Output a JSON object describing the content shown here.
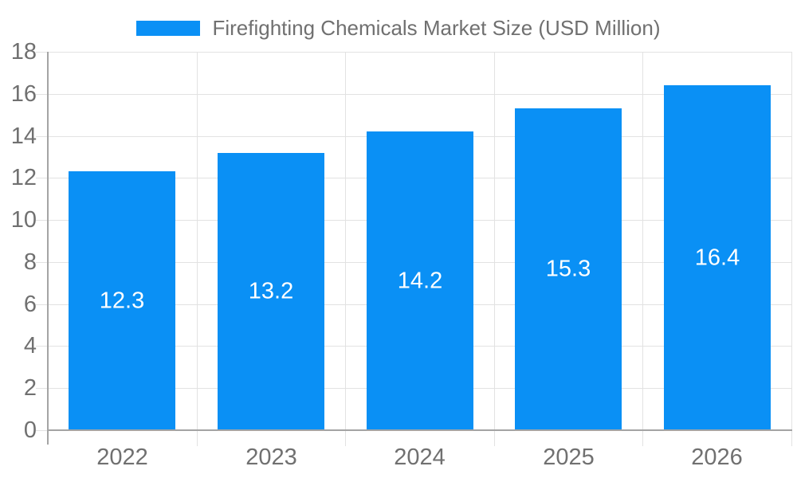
{
  "chart_data": {
    "type": "bar",
    "title": "Firefighting Chemicals Market Size (USD Million)",
    "categories": [
      "2022",
      "2023",
      "2024",
      "2025",
      "2026"
    ],
    "values": [
      12.3,
      13.2,
      14.2,
      15.3,
      16.4
    ],
    "bar_labels": [
      "12.3",
      "13.2",
      "14.2",
      "15.3",
      "16.4"
    ],
    "xlabel": "",
    "ylabel": "",
    "ylim": [
      0,
      18
    ],
    "ytick_step": 2,
    "ytick_labels": [
      "0",
      "2",
      "4",
      "6",
      "8",
      "10",
      "12",
      "14",
      "16",
      "18"
    ],
    "grid": true,
    "legend_position": "top",
    "legend": [
      {
        "label": "Firefighting Chemicals Market Size (USD Million)",
        "color": "#0a90f5"
      }
    ],
    "colors": {
      "bar": "#0a90f5",
      "bar_label_text": "#ffffff",
      "axis_text": "#707070",
      "gridline": "#e2e2e2",
      "axis_line": "#a4a4a4",
      "background": "#ffffff"
    }
  }
}
